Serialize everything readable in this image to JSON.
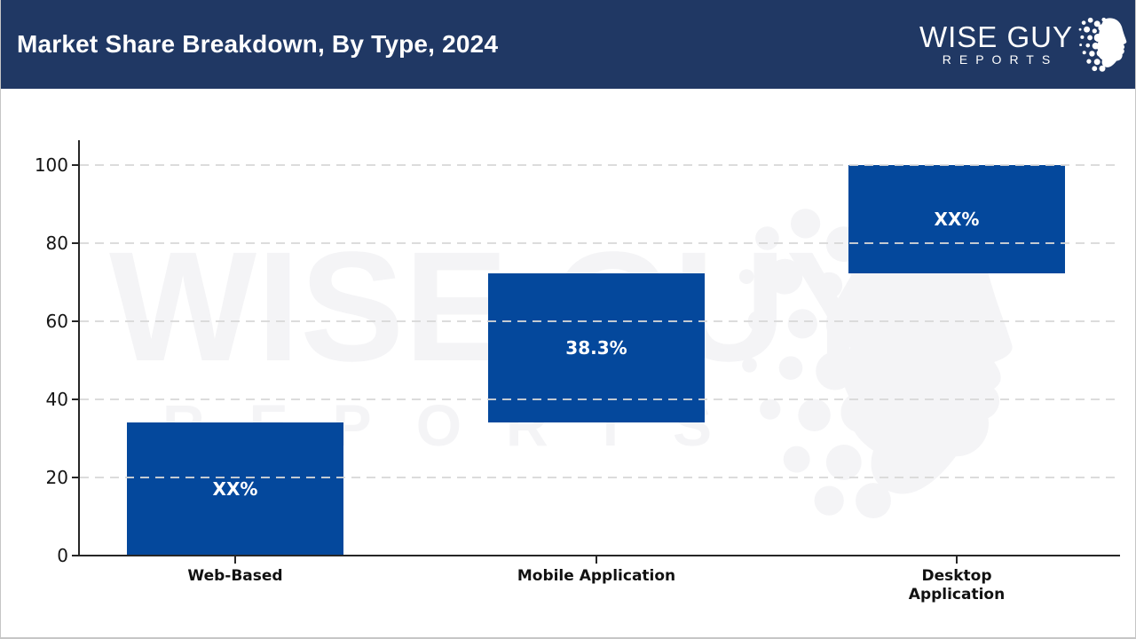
{
  "header": {
    "title": "Market Share Breakdown, By Type, 2024",
    "logo": {
      "name": "Wise Guy Reports",
      "line1": "WISE GUY",
      "line2": "REPORTS"
    }
  },
  "watermark": {
    "line1": "WISE GUY",
    "line2": "REPORTS"
  },
  "colors": {
    "header_bg": "#203864",
    "title_text": "#FFFFFF",
    "bar": "#04489C",
    "grid": "#D8D8D8",
    "axis": "#262626",
    "watermark": "#F4F4F6"
  },
  "chart_data": {
    "type": "bar",
    "variant": "floating stacked breakdown (each bar starts where previous ends)",
    "title": "Market Share Breakdown, By Type, 2024",
    "categories": [
      "Web-Based",
      "Mobile Application",
      "Desktop Application"
    ],
    "category_label_lines": [
      [
        "Web-Based"
      ],
      [
        "Mobile Application"
      ],
      [
        "Desktop",
        "Application"
      ]
    ],
    "segments": [
      {
        "category": "Web-Based",
        "from": 0,
        "to": 34.0,
        "value_label": "XX%"
      },
      {
        "category": "Mobile Application",
        "from": 34.0,
        "to": 72.3,
        "value_label": "38.3%"
      },
      {
        "category": "Desktop Application",
        "from": 72.3,
        "to": 100,
        "value_label": "XX%"
      }
    ],
    "yticks": [
      0,
      20,
      40,
      60,
      80,
      100
    ],
    "ylim": [
      0,
      100
    ],
    "xlabel": "",
    "ylabel": "",
    "grid": "horizontal-dashed",
    "legend": "none"
  }
}
